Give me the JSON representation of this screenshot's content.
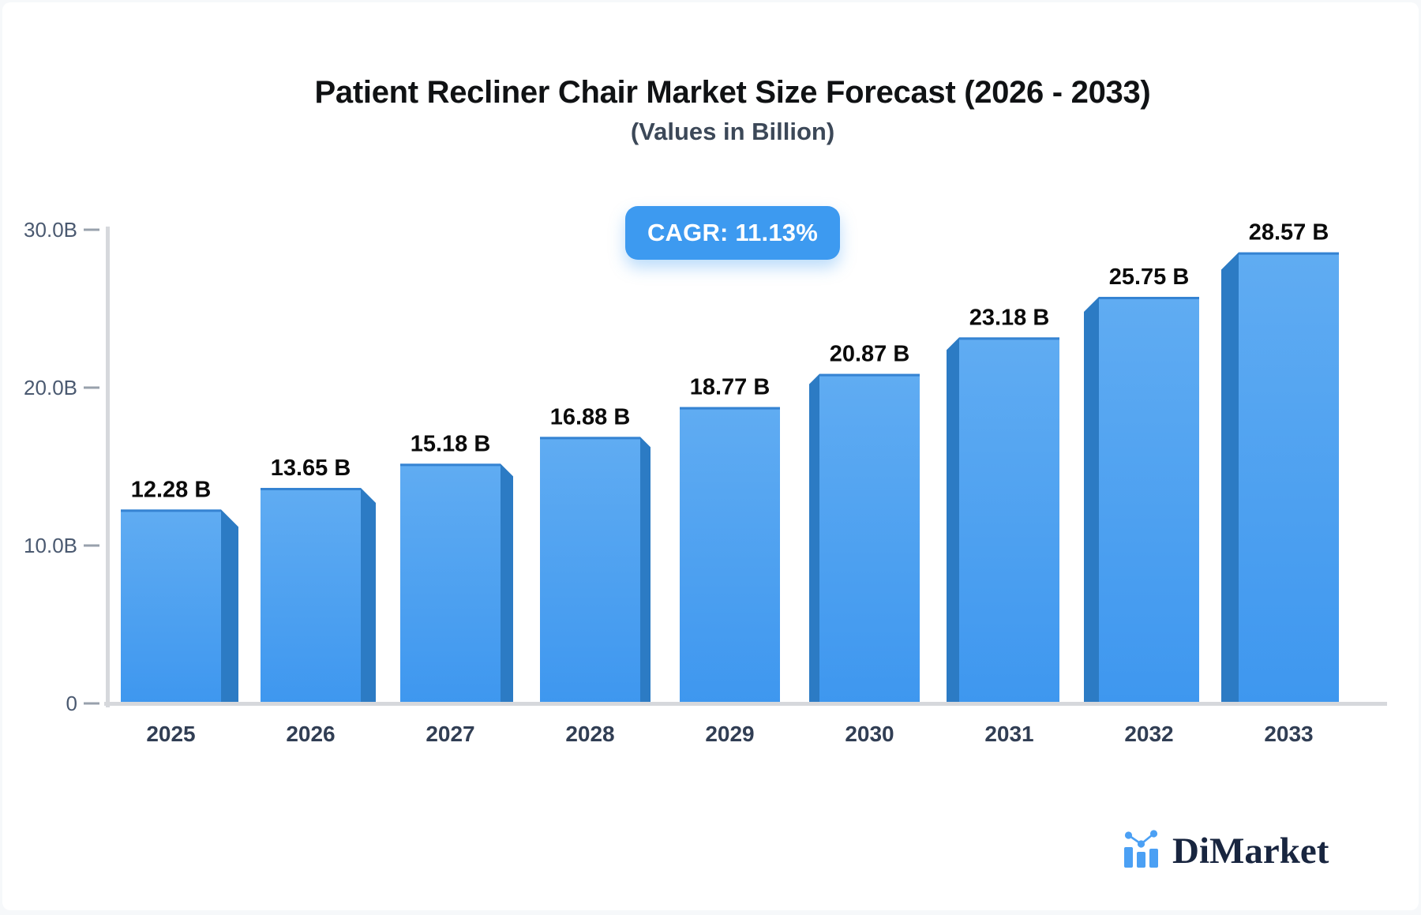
{
  "header": {
    "title": "Patient Recliner Chair Market Size Forecast (2026 - 2033)",
    "subtitle": "(Values in Billion)",
    "cagr_label": "CAGR: 11.13%"
  },
  "brand": {
    "name": "DiMarket",
    "icon": "bar-line-chart-icon"
  },
  "colors": {
    "accent_blue": "#3d9af0",
    "bar_front_top": "#60acf2",
    "bar_front_bottom": "#3e97ef",
    "bar_side": "#2c7bc4",
    "bar_top_edge": "#3583d2",
    "axis_line": "#d6d8dc",
    "tick_dash": "#98a1ac",
    "ytick_text": "#4a5970",
    "xtick_text": "#313e54",
    "value_text": "#0b0b0b",
    "badge_bg": "#3d9af0",
    "badge_text": "#ffffff",
    "brand_text": "#18253f",
    "brand_icon_blue": "#4ba0f4"
  },
  "chart_data": {
    "type": "bar",
    "categories": [
      "2025",
      "2026",
      "2027",
      "2028",
      "2029",
      "2030",
      "2031",
      "2032",
      "2033"
    ],
    "values": [
      12.28,
      13.65,
      15.18,
      16.88,
      18.77,
      20.87,
      23.18,
      25.75,
      28.57
    ],
    "value_labels": [
      "12.28 B",
      "13.65 B",
      "15.18 B",
      "16.88 B",
      "18.77 B",
      "20.87 B",
      "23.18 B",
      "25.75 B",
      "28.57 B"
    ],
    "title": "Patient Recliner Chair Market Size Forecast (2026 - 2033)",
    "subtitle": "(Values in Billion)",
    "annotation": "CAGR: 11.13%",
    "xlabel": "",
    "ylabel": "",
    "ylim": [
      0,
      30
    ],
    "yticks": [
      0,
      10,
      20,
      30
    ],
    "ytick_labels": [
      "0",
      "10.0B",
      "20.0B",
      "30.0B"
    ],
    "grid": false,
    "legend": false,
    "style": "3d-perspective-bars"
  }
}
